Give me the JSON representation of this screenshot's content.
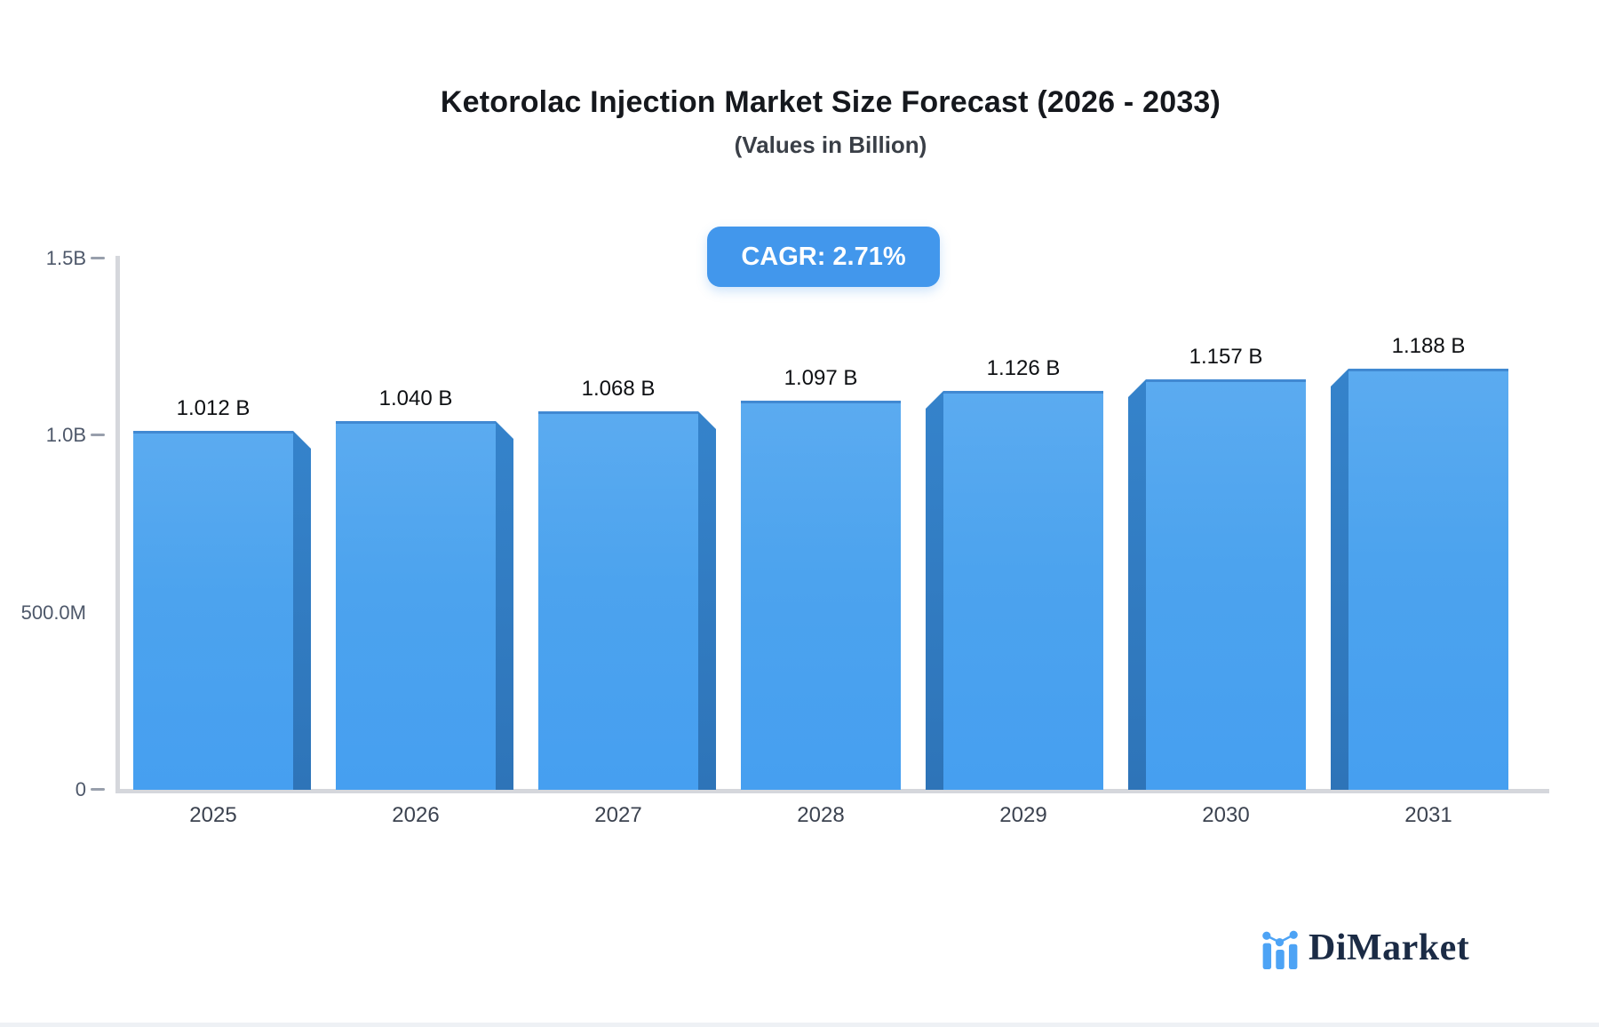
{
  "chart_data": {
    "type": "bar",
    "title": "Ketorolac Injection Market Size Forecast (2026 - 2033)",
    "subtitle": "(Values in Billion)",
    "badge": "CAGR: 2.71%",
    "categories": [
      "2025",
      "2026",
      "2027",
      "2028",
      "2029",
      "2030",
      "2031"
    ],
    "values": [
      1.012,
      1.04,
      1.068,
      1.097,
      1.126,
      1.157,
      1.188
    ],
    "value_labels": [
      "1.012 B",
      "1.040 B",
      "1.068 B",
      "1.097 B",
      "1.126 B",
      "1.157 B",
      "1.188 B"
    ],
    "unit": "B",
    "ylim": [
      0,
      1.5
    ],
    "y_ticks": [
      {
        "label": "1.5B",
        "value": 1.5,
        "dash": true
      },
      {
        "label": "1.0B",
        "value": 1.0,
        "dash": true
      },
      {
        "label": "500.0M",
        "value": 0.5,
        "dash": false
      },
      {
        "label": "0",
        "value": 0,
        "dash": true
      }
    ],
    "grid": false,
    "legend_position": "none",
    "style_3d": true,
    "colors": {
      "bar_face_top": "#5babf0",
      "bar_face_bottom": "#469ff0",
      "bar_side": "#3076be",
      "badge_bg": "#4297ec",
      "axis_line": "#d5d7dc"
    }
  },
  "brand": {
    "name": "DiMarket",
    "icon": "dimarket-bars-icon",
    "color_text": "#1b2b45",
    "color_icon": "#4da3f5"
  }
}
